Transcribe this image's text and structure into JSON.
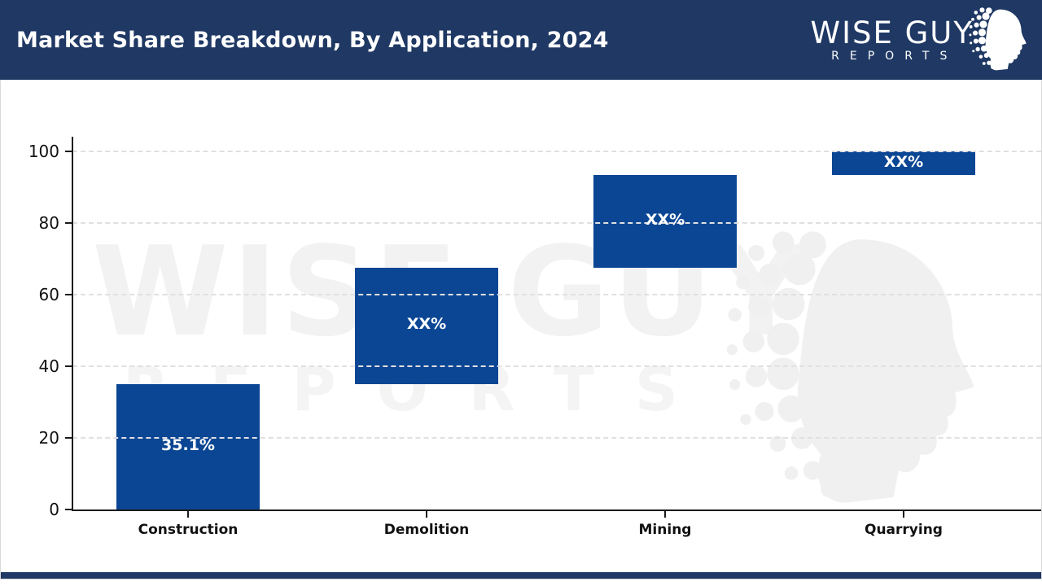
{
  "header": {
    "title": "Market Share Breakdown, By Application, 2024",
    "bg_color": "#1f3864",
    "logo": {
      "line1": "WISE GUY",
      "line2": "REPORTS"
    }
  },
  "watermark": {
    "line1": "WISE GUY",
    "line2": "REPORTS"
  },
  "chart_data": {
    "type": "bar",
    "subtype": "waterfall-stacked",
    "title": "Market Share Breakdown, By Application, 2024",
    "categories": [
      "Construction",
      "Demolition",
      "Mining",
      "Quarrying"
    ],
    "segments": [
      {
        "category": "Construction",
        "start": 0,
        "end": 35.1,
        "label": "35.1%"
      },
      {
        "category": "Demolition",
        "start": 35.1,
        "end": 67.5,
        "label": "XX%"
      },
      {
        "category": "Mining",
        "start": 67.5,
        "end": 93.4,
        "label": "XX%"
      },
      {
        "category": "Quarrying",
        "start": 93.4,
        "end": 100,
        "label": "XX%"
      }
    ],
    "xlabel": "",
    "ylabel": "",
    "ylim": [
      0,
      100
    ],
    "yticks": [
      0,
      20,
      40,
      60,
      80,
      100
    ],
    "grid": "horizontal-dashed",
    "legend": "none",
    "bar_color": "#0b4694",
    "bar_label_color": "#ffffff"
  }
}
